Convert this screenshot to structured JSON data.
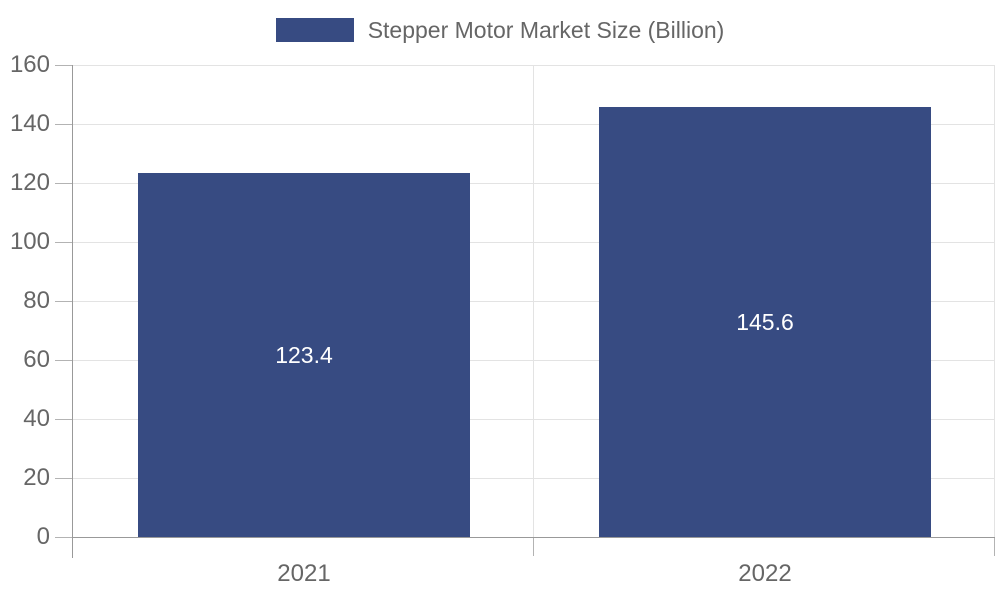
{
  "chart_data": {
    "type": "bar",
    "title": "",
    "legend_entries": [
      "Stepper Motor Market Size (Billion)"
    ],
    "legend_position": "top-center",
    "categories": [
      "2021",
      "2022"
    ],
    "series": [
      {
        "name": "Stepper Motor Market Size (Billion)",
        "values": [
          123.4,
          145.6
        ]
      }
    ],
    "value_labels": [
      "123.4",
      "145.6"
    ],
    "xlabel": "",
    "ylabel": "",
    "ylim": [
      0,
      160
    ],
    "yticks": [
      0,
      20,
      40,
      60,
      80,
      100,
      120,
      140,
      160
    ],
    "grid": true,
    "colors": {
      "bar": "#374b82",
      "gridline": "#e3e3e3",
      "axis_line": "#999999",
      "tick_mark": "#b3b3b3",
      "tick_label": "#666666",
      "legend_label": "#666666",
      "value_label": "#ffffff",
      "background": "#ffffff"
    }
  }
}
